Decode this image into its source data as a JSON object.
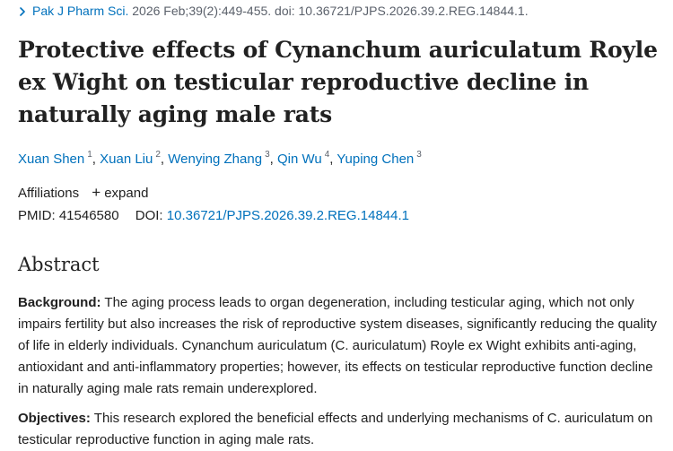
{
  "citation": {
    "journal": "Pak J Pharm Sci.",
    "details": "2026 Feb;39(2):449-455. doi: 10.36721/PJPS.2026.39.2.REG.14844.1."
  },
  "title": "Protective effects of Cynanchum auriculatum Royle ex Wight on testicular reproductive decline in naturally aging male rats",
  "authors": [
    {
      "name": "Xuan Shen",
      "sup": "1"
    },
    {
      "name": "Xuan Liu",
      "sup": "2"
    },
    {
      "name": "Wenying Zhang",
      "sup": "3"
    },
    {
      "name": "Qin Wu",
      "sup": "4"
    },
    {
      "name": "Yuping Chen",
      "sup": "3"
    }
  ],
  "affiliations": {
    "label": "Affiliations",
    "expand_label": "expand"
  },
  "identifiers": {
    "pmid_label": "PMID:",
    "pmid": "41546580",
    "doi_label": "DOI:",
    "doi": "10.36721/PJPS.2026.39.2.REG.14844.1"
  },
  "abstract": {
    "heading": "Abstract",
    "background_label": "Background:",
    "background_text": "The aging process leads to organ degeneration, including testicular aging, which not only impairs fertility but also increases the risk of reproductive system diseases, significantly reducing the quality of life in elderly individuals. Cynanchum auriculatum (C. auriculatum) Royle ex Wight exhibits anti-aging, antioxidant and anti-inflammatory properties; however, its effects on testicular reproductive function decline in naturally aging male rats remain underexplored.",
    "objectives_label": "Objectives:",
    "objectives_text": "This research explored the beneficial effects and underlying mechanisms of C. auriculatum on testicular reproductive function in aging male rats."
  },
  "colors": {
    "link": "#0071bc",
    "text": "#212121",
    "muted": "#5b616b"
  },
  "icons": {
    "citation": "chevron-right-icon",
    "expand": "plus-icon"
  }
}
